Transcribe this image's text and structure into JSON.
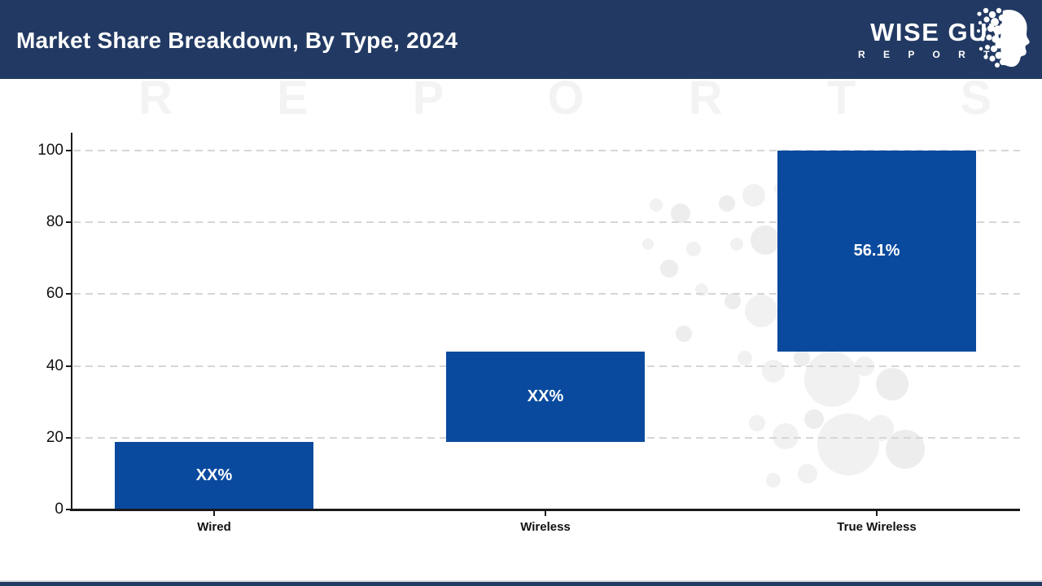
{
  "header": {
    "title": "Market Share Breakdown, By Type, 2024",
    "bg_color": "#223a63",
    "logo": {
      "line1": "WISE GUY",
      "line2": "R E P O R T S"
    }
  },
  "watermark": {
    "line1": "WISE GUY",
    "line2": "R E P O R T S"
  },
  "chart_data": {
    "type": "bar",
    "subtype": "waterfall",
    "title": "Market Share Breakdown, By Type, 2024",
    "categories": [
      "Wired",
      "Wireless",
      "True Wireless"
    ],
    "segments": [
      {
        "category": "Wired",
        "start": 0,
        "end": 18.9,
        "label": "XX%"
      },
      {
        "category": "Wireless",
        "start": 18.9,
        "end": 43.9,
        "label": "XX%"
      },
      {
        "category": "True Wireless",
        "start": 43.9,
        "end": 100,
        "label": "56.1%"
      }
    ],
    "xlabel": "",
    "ylabel": "",
    "ylim": [
      0,
      100
    ],
    "yticks": [
      0,
      20,
      40,
      60,
      80,
      100
    ],
    "grid": "horizontal-dashed",
    "legend": "none",
    "bar_color": "#0a4a9e",
    "bar_label_color": "#ffffff",
    "axis_color": "#1a1a1a",
    "grid_color": "#d6d6d6"
  }
}
